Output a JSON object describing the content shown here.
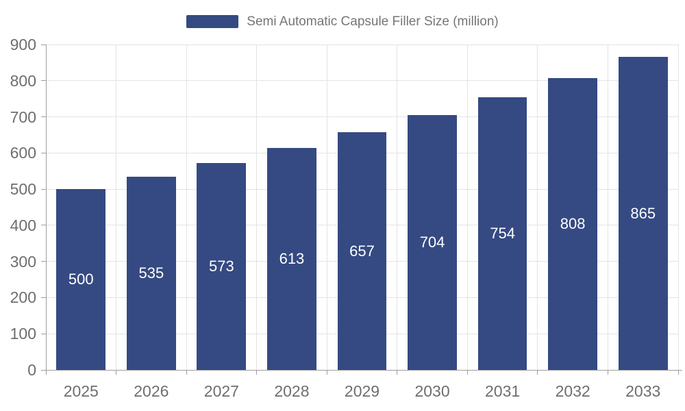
{
  "legend": {
    "label": "Semi Automatic Capsule Filler Size (million)"
  },
  "chart_data": {
    "type": "bar",
    "title": "Semi Automatic Capsule Filler Size (million)",
    "series_name": "Semi Automatic Capsule Filler Size (million)",
    "categories": [
      "2025",
      "2026",
      "2027",
      "2028",
      "2029",
      "2030",
      "2031",
      "2032",
      "2033"
    ],
    "values": [
      500,
      535,
      573,
      613,
      657,
      704,
      754,
      808,
      865
    ],
    "xlabel": "",
    "ylabel": "",
    "ylim": [
      0,
      900
    ],
    "yticks": [
      0,
      100,
      200,
      300,
      400,
      500,
      600,
      700,
      800,
      900
    ],
    "grid": true,
    "legend_position": "top",
    "colors": {
      "bar": "#354A82",
      "bar_label": "#FFFFFF",
      "grid": "#E3E3E3",
      "axis": "#9E9E9E",
      "tick_label": "#6E6E6E",
      "legend_text": "#757575"
    }
  }
}
